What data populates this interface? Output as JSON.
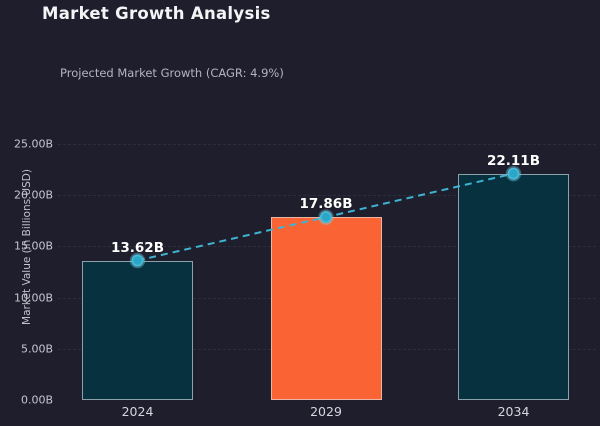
{
  "header": {
    "title": "Market Growth Analysis",
    "subtitle": "Projected Market Growth (CAGR: 4.9%)"
  },
  "chart_data": {
    "type": "bar",
    "title": "Market Growth Analysis",
    "subtitle": "Projected Market Growth (CAGR: 4.9%)",
    "categories": [
      "2024",
      "2029",
      "2034"
    ],
    "values": [
      13.62,
      17.86,
      22.11
    ],
    "data_labels": [
      "13.62B",
      "17.86B",
      "22.11B"
    ],
    "xlabel": "",
    "ylabel": "Market Value (in Billions USD)",
    "ylim": [
      0,
      25
    ],
    "yticks": [
      0,
      5,
      10,
      15,
      20,
      25
    ],
    "ytick_labels": [
      "0.00B",
      "5.00B",
      "10.00B",
      "15.00B",
      "20.00B",
      "25.00B"
    ],
    "grid": true,
    "legend": false,
    "overlay_trend_line": true,
    "colors": {
      "background": "#1e1e2d",
      "bar_fills": [
        "#083140",
        "#fa6434",
        "#083140"
      ],
      "bar_border": "rgba(222,230,234,0.62)",
      "trend_line": "#3fb3cf",
      "marker_fill": "#2aa7c8",
      "marker_ring": "rgba(120,215,238,0.38)",
      "title_text": "#f4f4f7",
      "subtitle_text": "#b4b4c0",
      "axis_text": "#c6c6d1"
    }
  }
}
